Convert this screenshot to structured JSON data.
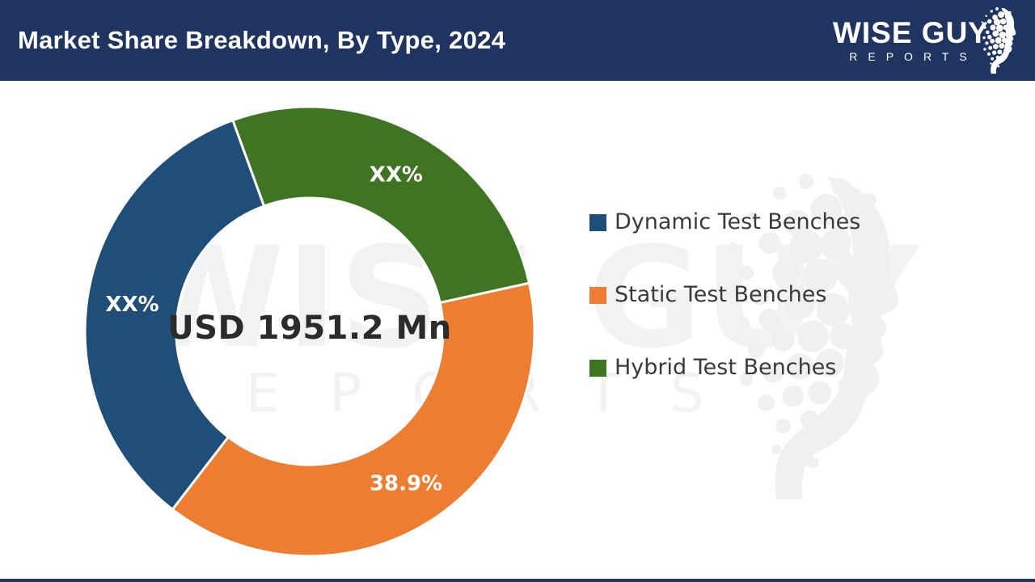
{
  "header": {
    "title": "Market Share Breakdown, By Type, 2024",
    "logo": {
      "line1": "WISE GUY",
      "line2": "REPORTS",
      "icon": "dotted-face-profile-icon"
    },
    "bg_color": "#1F3460"
  },
  "chart_data": {
    "type": "pie",
    "donut": true,
    "title": "Market Share Breakdown, By Type, 2024",
    "center_label": "USD 1951.2 Mn",
    "start_angle": 110,
    "direction": "counterclockwise",
    "legend_position": "right",
    "separator_color": "#ffffff",
    "segments": [
      {
        "name": "Dynamic Test Benches",
        "label": "XX%",
        "value_pct": 34.0,
        "color": "#1F4E78"
      },
      {
        "name": "Static Test Benches",
        "label": "38.9%",
        "value_pct": 38.9,
        "color": "#ED7D31"
      },
      {
        "name": "Hybrid Test Benches",
        "label": "XX%",
        "value_pct": 27.1,
        "color": "#3F7423"
      }
    ]
  },
  "watermark": {
    "line1": "WISE GUY",
    "line2": "REPORTS",
    "icon": "dotted-face-profile-icon"
  },
  "footer": {
    "bar_color": "#1F3460"
  }
}
